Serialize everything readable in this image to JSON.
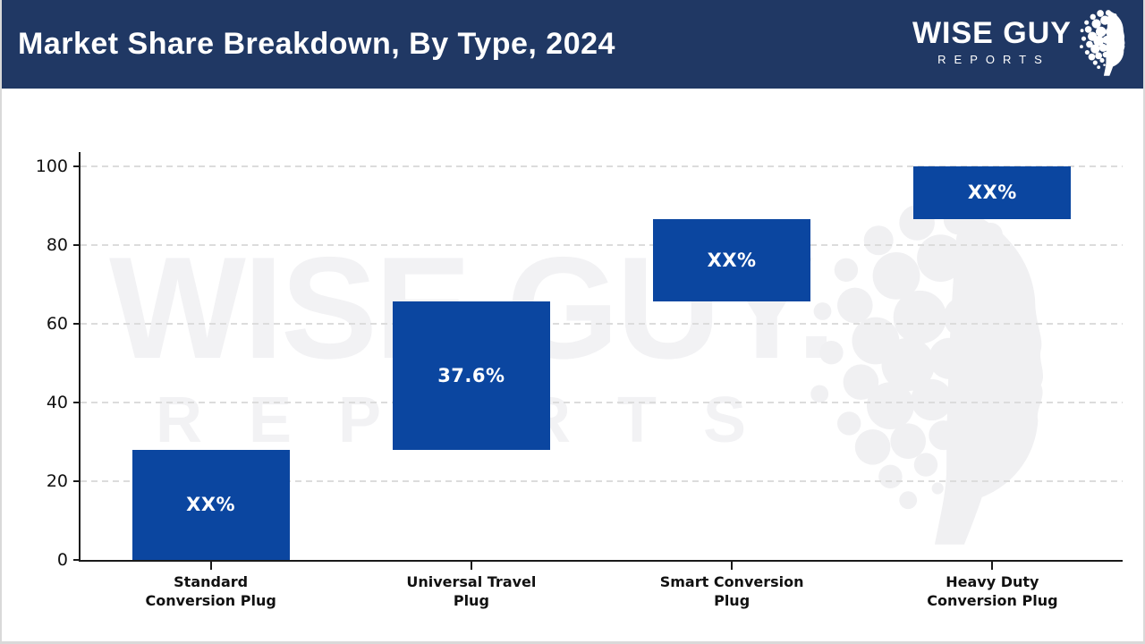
{
  "header": {
    "title": "Market Share Breakdown, By Type, 2024",
    "logo": {
      "line1": "WISE GUY",
      "line2": "REPORTS"
    }
  },
  "watermark": {
    "line1": "WISE GUY.",
    "line2": "REPORTS"
  },
  "colors": {
    "header_bg": "#203864",
    "bar": "#0b46a0",
    "bar_label": "#ffffff",
    "axis": "#1a1a1a",
    "grid": "#dcdcdc",
    "watermark": "#f2f2f4"
  },
  "chart_data": {
    "type": "bar",
    "subtype": "waterfall",
    "title": "Market Share Breakdown, By Type, 2024",
    "categories": [
      "Standard\nConversion Plug",
      "Universal Travel\nPlug",
      "Smart Conversion\nPlug",
      "Heavy Duty\nConversion Plug"
    ],
    "segments": [
      {
        "start": 0,
        "end": 28,
        "label": "XX%",
        "estimated_value": 28
      },
      {
        "start": 28,
        "end": 65.6,
        "label": "37.6%",
        "estimated_value": 37.6
      },
      {
        "start": 65.6,
        "end": 86.6,
        "label": "XX%",
        "estimated_value": 21
      },
      {
        "start": 86.6,
        "end": 100,
        "label": "XX%",
        "estimated_value": 13.4
      }
    ],
    "ylim": [
      0,
      100
    ],
    "yticks": [
      0,
      20,
      40,
      60,
      80,
      100
    ],
    "grid": "horizontal dashed",
    "legend": "none"
  }
}
